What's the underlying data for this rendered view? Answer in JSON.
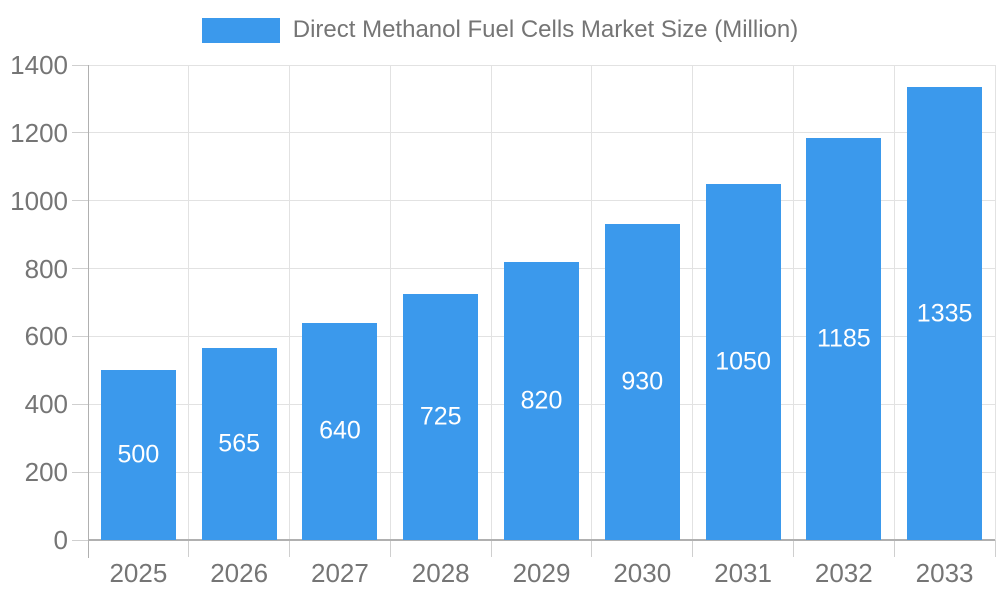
{
  "chart_data": {
    "type": "bar",
    "title": "Direct Methanol Fuel Cells Market Size (Million)",
    "categories": [
      "2025",
      "2026",
      "2027",
      "2028",
      "2029",
      "2030",
      "2031",
      "2032",
      "2033"
    ],
    "values": [
      500,
      565,
      640,
      725,
      820,
      930,
      1050,
      1185,
      1335
    ],
    "yticks": [
      0,
      200,
      400,
      600,
      800,
      1000,
      1200,
      1400
    ],
    "ylim": [
      0,
      1400
    ],
    "grid": true,
    "legend_position": "top",
    "colors": {
      "bar": "#3B99EC",
      "bar_label": "#ffffff",
      "axis_text": "#757575",
      "grid_line": "#e2e2e2",
      "axis_line": "#b0b0b0",
      "tick_line": "#cfcfcf"
    }
  }
}
